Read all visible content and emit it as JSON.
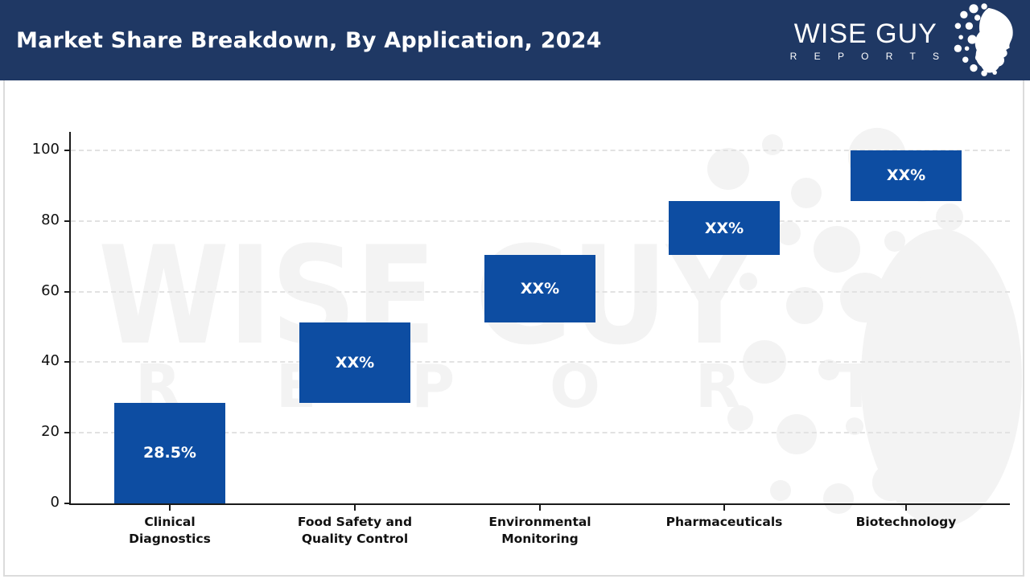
{
  "header": {
    "title": "Market Share Breakdown, By Application, 2024",
    "brand": {
      "name": "WISE GUY",
      "sub": "R E P O R T S"
    }
  },
  "watermark": {
    "line1": "WISE GUY",
    "line2": "R E P O R T S"
  },
  "colors": {
    "header_bg": "#1f3864",
    "bar": "#0d4da2",
    "grid": "#e2e2e2",
    "axis": "#1a1a1a",
    "bar_label": "#ffffff",
    "page_border": "#dcdcdc",
    "watermark": "#f3f3f3"
  },
  "chart_data": {
    "type": "bar",
    "subtype": "waterfall",
    "title": "Market Share Breakdown, By Application, 2024",
    "categories": [
      "Clinical Diagnostics",
      "Food Safety and Quality Control",
      "Environmental Monitoring",
      "Pharmaceuticals",
      "Biotechnology"
    ],
    "category_lines": [
      [
        "Clinical",
        "Diagnostics"
      ],
      [
        "Food Safety and",
        "Quality Control"
      ],
      [
        "Environmental",
        "Monitoring"
      ],
      [
        "Pharmaceuticals"
      ],
      [
        "Biotechnology"
      ]
    ],
    "segments": [
      [
        0,
        28.5
      ],
      [
        28.5,
        51.2
      ],
      [
        51.2,
        70.3
      ],
      [
        70.3,
        85.6
      ],
      [
        85.7,
        100
      ]
    ],
    "values": [
      28.5,
      22.7,
      19.1,
      15.3,
      14.3
    ],
    "bar_labels": [
      "28.5%",
      "XX%",
      "XX%",
      "XX%",
      "XX%"
    ],
    "y_ticks": [
      0,
      20,
      40,
      60,
      80,
      100
    ],
    "y_tick_labels": [
      "0",
      "20",
      "40",
      "60",
      "80",
      "100"
    ],
    "ylim": [
      0,
      106
    ],
    "xlabel": "",
    "ylabel": "",
    "grid": "horizontal-dashed",
    "legend": "none"
  }
}
